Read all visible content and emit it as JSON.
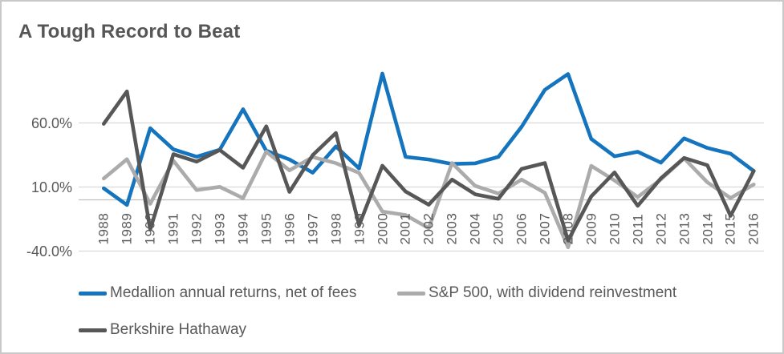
{
  "chart": {
    "title": "A Tough Record to Beat"
  },
  "chart_data": {
    "type": "line",
    "title": "A Tough Record to Beat",
    "x": [
      1988,
      1989,
      1990,
      1991,
      1992,
      1993,
      1994,
      1995,
      1996,
      1997,
      1998,
      1999,
      2000,
      2001,
      2002,
      2003,
      2004,
      2005,
      2006,
      2007,
      2008,
      2009,
      2010,
      2011,
      2012,
      2013,
      2014,
      2015,
      2016
    ],
    "series": [
      {
        "id": "medallion",
        "name": "Medallion annual returns, net of fees",
        "color": "#1574be",
        "values": [
          9,
          -4,
          55.9,
          39.4,
          33.6,
          39.1,
          70.7,
          38.3,
          31.5,
          21.2,
          41.7,
          24.5,
          98.5,
          33.5,
          31.5,
          28,
          28.5,
          33.5,
          57,
          85.9,
          98.2,
          47.5,
          34,
          37.5,
          29,
          48,
          40.5,
          36,
          22.5
        ]
      },
      {
        "id": "sp500",
        "name": "S&P 500, with dividend reinvestment",
        "color": "#ababab",
        "values": [
          16.6,
          31.7,
          -3.1,
          30.5,
          7.6,
          10.1,
          1.3,
          37.6,
          23,
          33.4,
          28.6,
          21,
          -9.1,
          -11.9,
          -22.1,
          28.7,
          10.9,
          4.9,
          15.8,
          5.5,
          -37,
          26.5,
          15.1,
          2.1,
          16,
          32.4,
          13.7,
          1.4,
          12
        ]
      },
      {
        "id": "berkshire",
        "name": "Berkshire Hathaway",
        "color": "#575757",
        "values": [
          59.3,
          84.6,
          -23.1,
          35.6,
          29.8,
          38.9,
          25,
          57.4,
          6.2,
          34.9,
          52.2,
          -19.9,
          26.6,
          6.5,
          -3.8,
          15.8,
          4.3,
          0.8,
          24.1,
          28.7,
          -31.8,
          2.7,
          21.4,
          -4.7,
          16.8,
          32.7,
          27,
          -12.5,
          22.5
        ]
      }
    ],
    "y_axis": {
      "tick_labels": [
        "60.0%",
        "10.0%",
        "-40.0%"
      ],
      "tick_values": [
        60,
        10,
        -40
      ],
      "zero_line": 0,
      "range": [
        -40,
        110
      ],
      "unit": "percent"
    },
    "x_axis": {
      "label_rotation": -90
    },
    "grid": "horizontal",
    "legend_position": "bottom",
    "colors": {
      "gridline": "#d9d9d9",
      "zero_axis": "#c0c0c0",
      "axis_text": "#595959",
      "title_text": "#565656",
      "frame_border": "#c9c9c9"
    }
  }
}
